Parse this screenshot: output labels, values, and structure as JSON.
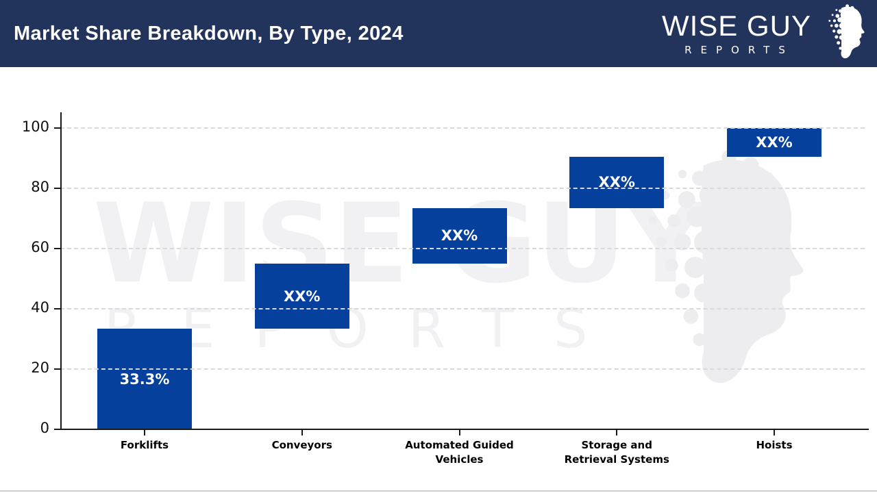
{
  "header": {
    "title": "Market Share Breakdown, By Type, 2024",
    "logo": {
      "line1": "WISE GUY",
      "line2": "REPORTS"
    }
  },
  "watermark": {
    "line1": "WISE GUY",
    "line2": "REPORTS"
  },
  "colors": {
    "header_bg": "#22335C",
    "header_text": "#ffffff",
    "bar": "#05419C",
    "bar_label": "#ffffff",
    "grid": "#d9d9d9",
    "axis": "#1a1a1a",
    "tick_label": "#111111",
    "watermark": "#f1f1f4"
  },
  "chart_data": {
    "type": "bar",
    "subtype": "waterfall",
    "title": "Market Share Breakdown, By Type, 2024",
    "xlabel": "",
    "ylabel": "",
    "ylim": [
      0,
      100
    ],
    "yticks": [
      0,
      20,
      40,
      60,
      80,
      100
    ],
    "grid": true,
    "grid_style": "dashed",
    "legend": false,
    "categories": [
      "Forklifts",
      "Conveyors",
      "Automated Guided\nVehicles",
      "Storage and\nRetrieval Systems",
      "Hoists"
    ],
    "segments": [
      {
        "category": "Forklifts",
        "start": 0,
        "end": 33.3,
        "label": "33.3%"
      },
      {
        "category": "Conveyors",
        "start": 33.3,
        "end": 55,
        "label": "XX%"
      },
      {
        "category": "Automated Guided Vehicles",
        "start": 55,
        "end": 73.5,
        "label": "XX%"
      },
      {
        "category": "Storage and Retrieval Systems",
        "start": 73.5,
        "end": 90.5,
        "label": "XX%"
      },
      {
        "category": "Hoists",
        "start": 90.5,
        "end": 100,
        "label": "XX%"
      }
    ]
  }
}
